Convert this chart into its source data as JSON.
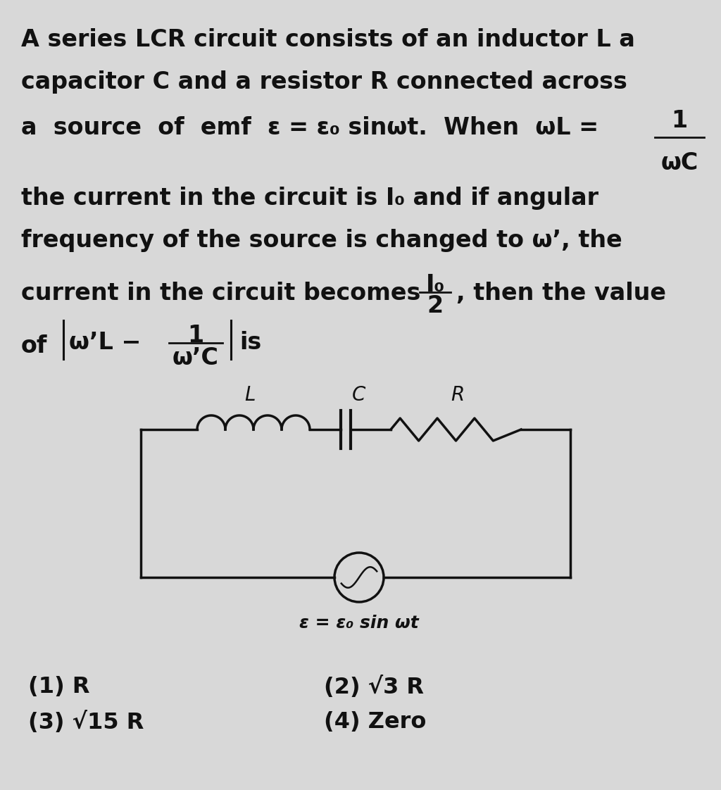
{
  "bg_color": "#d8d8d8",
  "text_color": "#111111",
  "font_size_main": 24,
  "font_size_small": 20,
  "font_size_circuit_label": 20,
  "font_size_source_label": 18,
  "font_size_answer": 23,
  "line1": "A series LCR circuit consists of an inductor L a",
  "line2": "capacitor C and a resistor R connected across",
  "line4": "the current in the circuit is I₀ and if angular",
  "line5": "frequency of the source is changed to ω’, the",
  "answer1": "(1) R",
  "answer2": "(2) √3 R",
  "answer3": "(3) √15 R",
  "answer4": "(4) Zero",
  "circuit_label_L": "L",
  "circuit_label_C": "C",
  "circuit_label_R": "R",
  "circuit_source_label": "ε = ε₀ sin ωt"
}
